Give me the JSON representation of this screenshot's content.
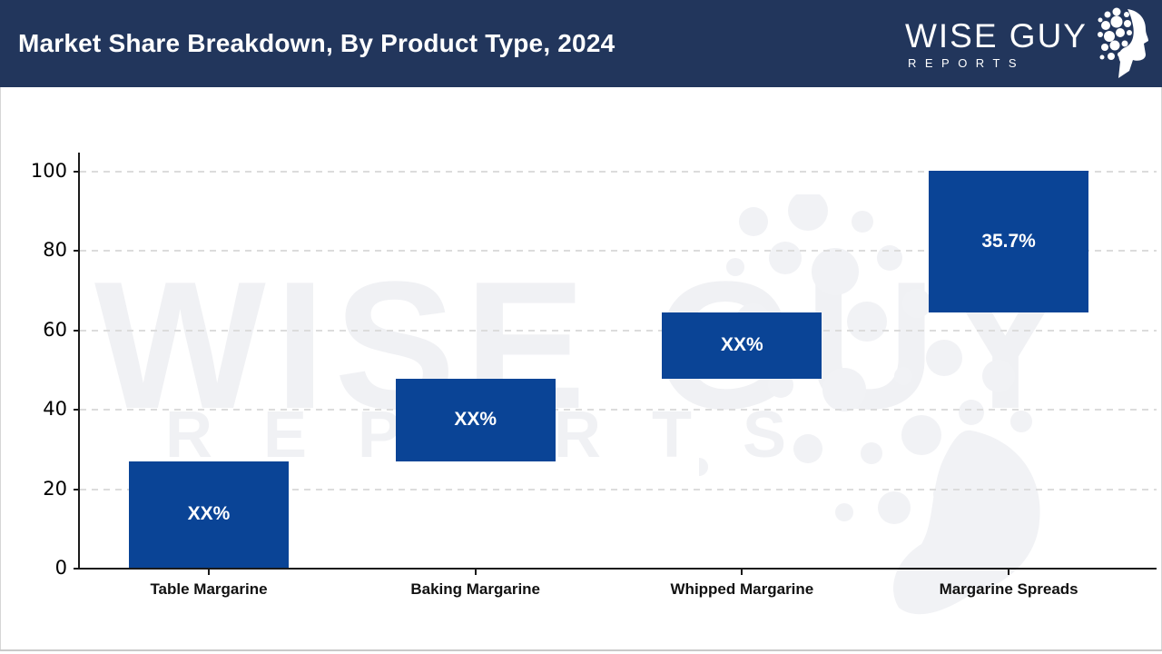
{
  "header": {
    "title": "Market Share Breakdown, By Product Type, 2024",
    "background_color": "#22365c",
    "logo": {
      "line1": "WISE GUY",
      "line2": "REPORTS"
    }
  },
  "watermark": {
    "line1": "WISE GUY",
    "line2": "REPORTS"
  },
  "chart_data": {
    "type": "bar",
    "subtype": "waterfall",
    "title": "Market Share Breakdown, By Product Type, 2024",
    "xlabel": "",
    "ylabel": "",
    "categories": [
      "Table Margarine",
      "Baking Margarine",
      "Whipped Margarine",
      "Margarine Spreads"
    ],
    "segments": [
      {
        "category": "Table Margarine",
        "start": 0,
        "end": 26.8,
        "value": 26.8,
        "label": "XX%"
      },
      {
        "category": "Baking Margarine",
        "start": 26.8,
        "end": 47.6,
        "value": 20.8,
        "label": "XX%"
      },
      {
        "category": "Whipped Margarine",
        "start": 47.6,
        "end": 64.3,
        "value": 16.7,
        "label": "XX%"
      },
      {
        "category": "Margarine Spreads",
        "start": 64.3,
        "end": 100,
        "value": 35.7,
        "label": "35.7%"
      }
    ],
    "yticks": [
      0,
      20,
      40,
      60,
      80,
      100
    ],
    "ylim": [
      0,
      104.5
    ],
    "grid": "horizontal dashed",
    "legend": "none",
    "bar_color": "#0a4496",
    "bar_label_color": "#ffffff",
    "axis_color": "#1a1a1a",
    "grid_color": "#dcdcdc"
  }
}
